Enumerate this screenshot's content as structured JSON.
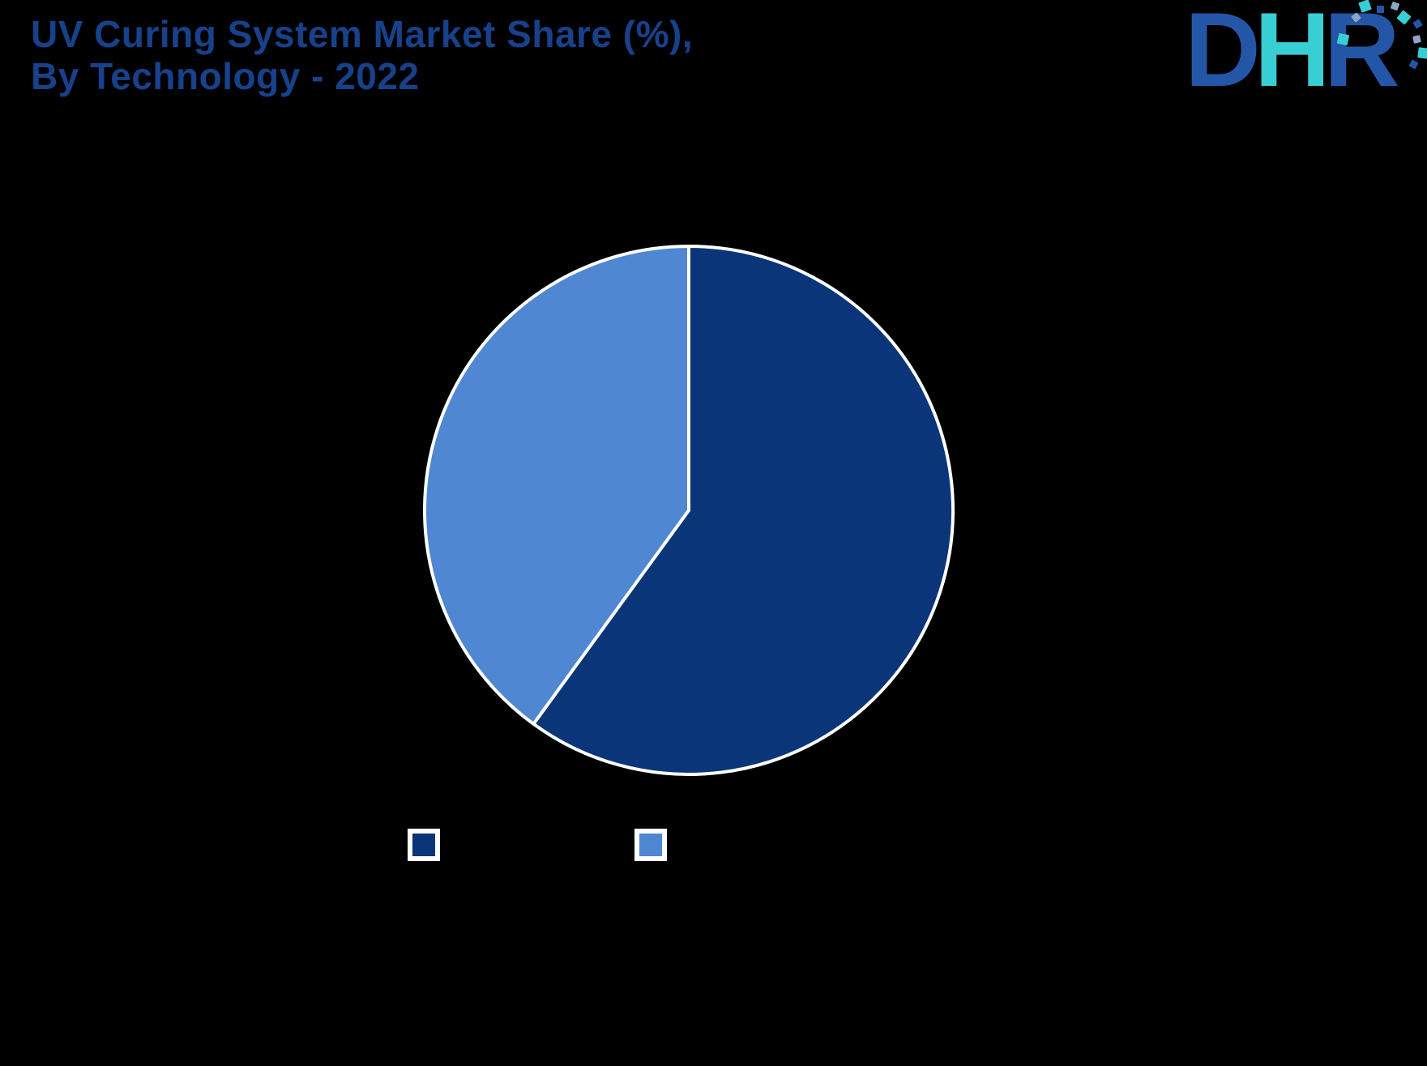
{
  "page": {
    "background_color": "#000000"
  },
  "header": {
    "title_line1": "UV Curing System Market Share (%),",
    "title_line2": "By Technology - 2022",
    "title_color": "#17418a"
  },
  "logo": {
    "name": "DHR",
    "letters": [
      {
        "char": "D",
        "color": "#2456a8"
      },
      {
        "char": "H",
        "color": "#38cfd4"
      },
      {
        "char": "R",
        "color": "#2456a8"
      }
    ],
    "dot_colors": [
      "#38cfd4",
      "#2456a8",
      "#8fa6c4"
    ]
  },
  "chart_data": {
    "type": "pie",
    "title": "UV Curing System Market Share (%), By Technology - 2022",
    "segments": [
      {
        "label": "",
        "value": 60,
        "color": "#0a3578"
      },
      {
        "label": "",
        "value": 40,
        "color": "#4f87d2"
      }
    ],
    "start_angle_clock_deg": 0,
    "direction": "clockwise",
    "slice_border_color": "#ffffff",
    "slice_border_width": 4,
    "legend_position": "bottom",
    "legend_labels_visible": false
  }
}
